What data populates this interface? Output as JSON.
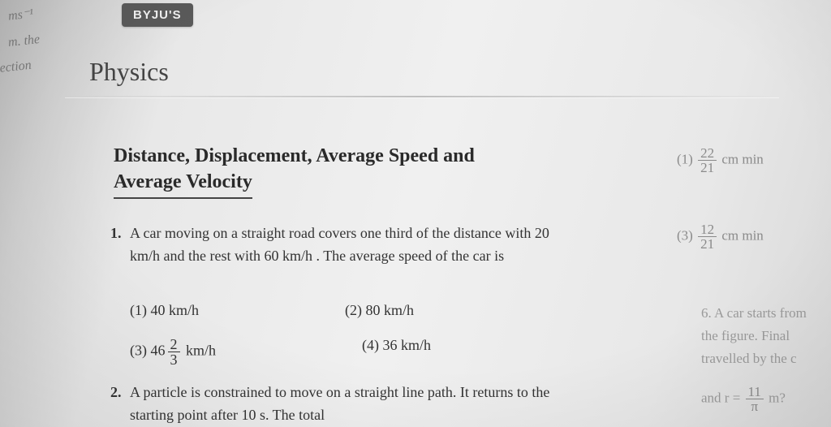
{
  "edge": {
    "t1": "ms⁻¹",
    "t2": "m. the",
    "t3": "rection"
  },
  "brand": "BYJU'S",
  "subject": "Physics",
  "topic": {
    "line1": "Distance, Displacement, Average Speed and",
    "line2": "Average Velocity"
  },
  "q1": {
    "num": "1.",
    "text_a": "A car moving on a straight road covers one third of the distance with ",
    "speed1": "20 km/h",
    "text_b": " and the rest with ",
    "speed2": "60 km/h",
    "text_c": ". The average speed of the car is"
  },
  "opts": {
    "o1": "(1) 40 km/h",
    "o2": "(2) 80 km/h",
    "o3_pre": "(3) 46",
    "o3_top": "2",
    "o3_bot": "3",
    "o3_post": " km/h",
    "o4": "(4) 36 km/h"
  },
  "q2": {
    "num": "2.",
    "text": "A particle is constrained to move on a straight line path. It returns to the starting point after 10 s. The total"
  },
  "right": {
    "r1_pre": "(1) ",
    "r1_top": "22",
    "r1_bot": "21",
    "r1_post": " cm min",
    "r3_pre": "(3) ",
    "r3_top": "12",
    "r3_bot": "21",
    "r3_post": " cm min",
    "r6": "6. A car starts from",
    "rfig": "the figure. Final",
    "rtrav": "travelled by the c",
    "rand_pre": "and r = ",
    "rand_top": "11",
    "rand_bot": "π",
    "rand_post": " m?"
  }
}
